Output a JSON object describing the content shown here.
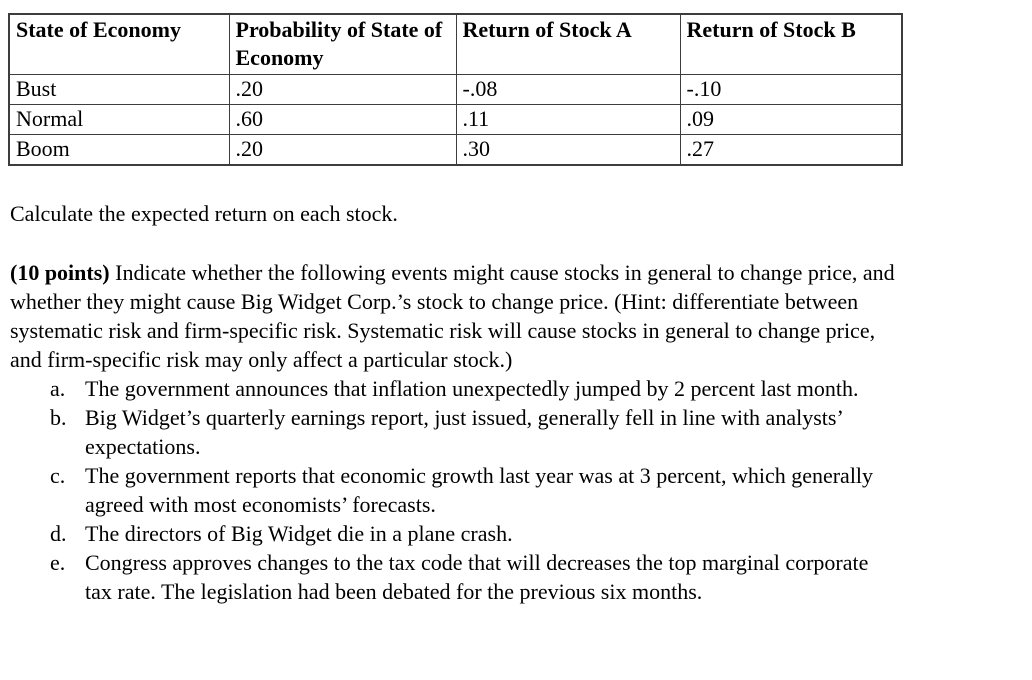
{
  "table": {
    "headers": [
      "State of Economy",
      "Probability of State of Economy",
      "Return of Stock A",
      "Return of Stock B"
    ],
    "rows": [
      [
        "Bust",
        ".20",
        "-.08",
        "-.10"
      ],
      [
        "Normal",
        ".60",
        ".11",
        ".09"
      ],
      [
        "Boom",
        ".20",
        ".30",
        ".27"
      ]
    ]
  },
  "calculate_line": "Calculate the expected return on each stock.",
  "intro": {
    "bold": "(10 points)",
    "rest": " Indicate whether the following events might cause stocks in general to change price, and whether they might cause Big Widget Corp.’s stock to change price. (Hint: differentiate between systematic risk and firm-specific risk. Systematic risk will cause stocks in general to change price, and firm-specific risk may only affect a particular stock.)"
  },
  "list": {
    "items": [
      {
        "marker": "a.",
        "text": "The government announces that inflation unexpectedly jumped by 2 percent last month."
      },
      {
        "marker": "b.",
        "text": "Big Widget’s quarterly earnings report, just issued, generally fell in line with analysts’ expectations."
      },
      {
        "marker": "c.",
        "text": "The government reports that economic growth last year was at 3 percent, which generally agreed with most economists’ forecasts."
      },
      {
        "marker": "d.",
        "text": "The directors of Big Widget die in a plane crash."
      },
      {
        "marker": "e.",
        "text": "Congress approves changes to the tax code that will decreases the top marginal corporate tax rate. The legislation had been debated for the previous six months."
      }
    ]
  },
  "colors": {
    "text": "#000000",
    "background": "#ffffff",
    "table_border": "#3d3d3d"
  }
}
